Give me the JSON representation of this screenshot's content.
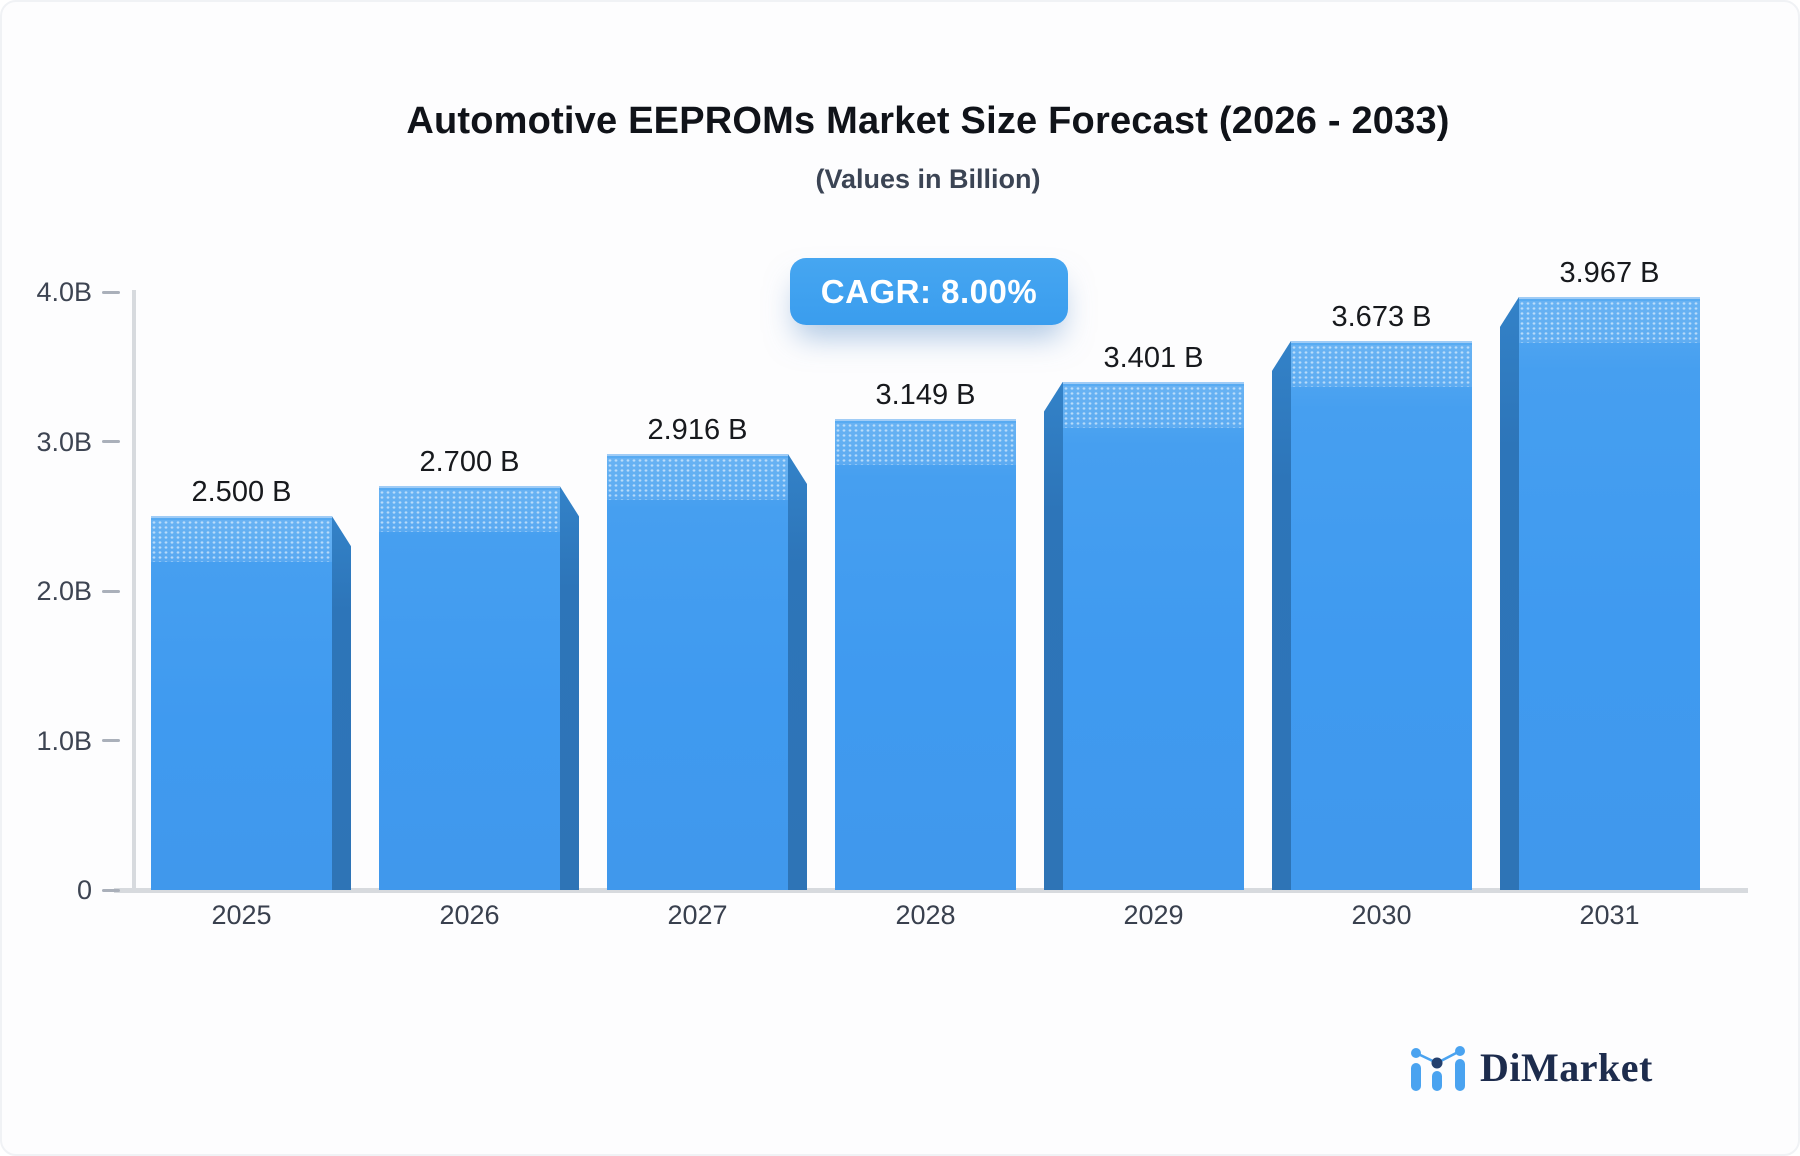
{
  "chart_data": {
    "type": "bar",
    "title": "Automotive EEPROMs Market Size Forecast (2026 - 2033)",
    "subtitle": "(Values in Billion)",
    "cagr_label": "CAGR: 8.00%",
    "categories": [
      "2025",
      "2026",
      "2027",
      "2028",
      "2029",
      "2030",
      "2031"
    ],
    "values": [
      2.5,
      2.7,
      2.916,
      3.149,
      3.401,
      3.673,
      3.967
    ],
    "value_labels": [
      "2.500 B",
      "2.700 B",
      "2.916 B",
      "3.149 B",
      "3.401 B",
      "3.673 B",
      "3.967 B"
    ],
    "ylim": [
      0,
      4
    ],
    "yticks": [
      0,
      1,
      2,
      3,
      4
    ],
    "ytick_labels": [
      "0",
      "1.0B",
      "2.0B",
      "3.0B",
      "4.0B"
    ],
    "grid": "off",
    "legend": "none",
    "colors": {
      "bar_front": "#429df0",
      "bar_side": "#2e74b6",
      "badge": "#3fa0ef",
      "axis_line": "#d7dade",
      "tick_text": "#3d4452",
      "label_text": "#17191d"
    }
  },
  "branding": {
    "logo_text": "DiMarket",
    "logo_icon": "bar-chart-trend-icon",
    "logo_color": "#1d2c4d",
    "logo_icon_color": "#4aa3f0"
  }
}
